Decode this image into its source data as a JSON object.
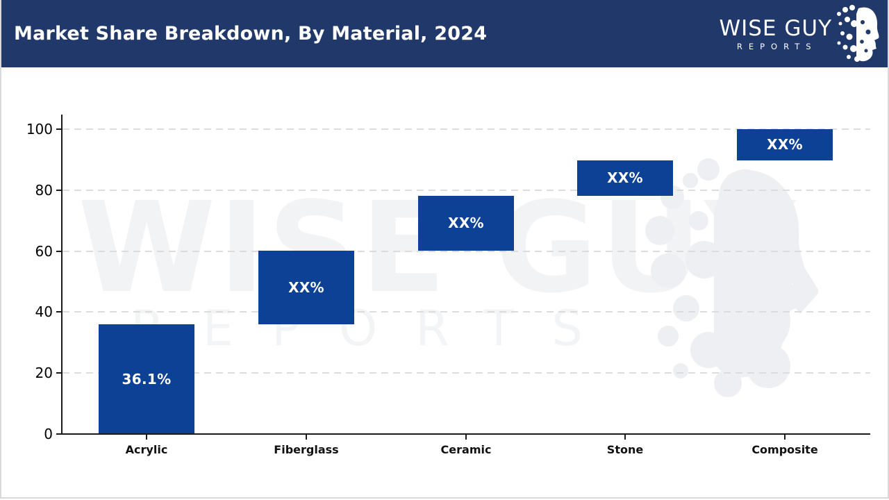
{
  "header": {
    "title": "Market Share Breakdown, By Material, 2024",
    "logo": {
      "brand": "WISE GUY",
      "sub": "REPORTS"
    }
  },
  "watermark": {
    "brand": "WISE GUY",
    "sub": "REPORTS"
  },
  "chart_data": {
    "type": "bar",
    "variant": "waterfall",
    "title": "Market Share Breakdown, By Material, 2024",
    "categories": [
      "Acrylic",
      "Fiberglass",
      "Ceramic",
      "Stone",
      "Composite"
    ],
    "segments": [
      {
        "category": "Acrylic",
        "start": 0,
        "end": 36.1,
        "label": "36.1%"
      },
      {
        "category": "Fiberglass",
        "start": 36.1,
        "end": 60.2,
        "label": "XX%"
      },
      {
        "category": "Ceramic",
        "start": 60.2,
        "end": 78.1,
        "label": "XX%"
      },
      {
        "category": "Stone",
        "start": 78.1,
        "end": 89.8,
        "label": "XX%"
      },
      {
        "category": "Composite",
        "start": 89.8,
        "end": 100,
        "label": "XX%"
      }
    ],
    "yticks": [
      0,
      20,
      40,
      60,
      80,
      100
    ],
    "ylim": [
      0,
      100
    ],
    "xlabel": "",
    "ylabel": "",
    "grid": "horizontal-dashed",
    "legend": "none",
    "colors": {
      "bar": "#0d4195",
      "bar_label": "#ffffff",
      "header_bg": "#21386b",
      "grid": "#dcdcdc",
      "axis": "#1a1a1a",
      "watermark": "#f2f3f5"
    }
  }
}
